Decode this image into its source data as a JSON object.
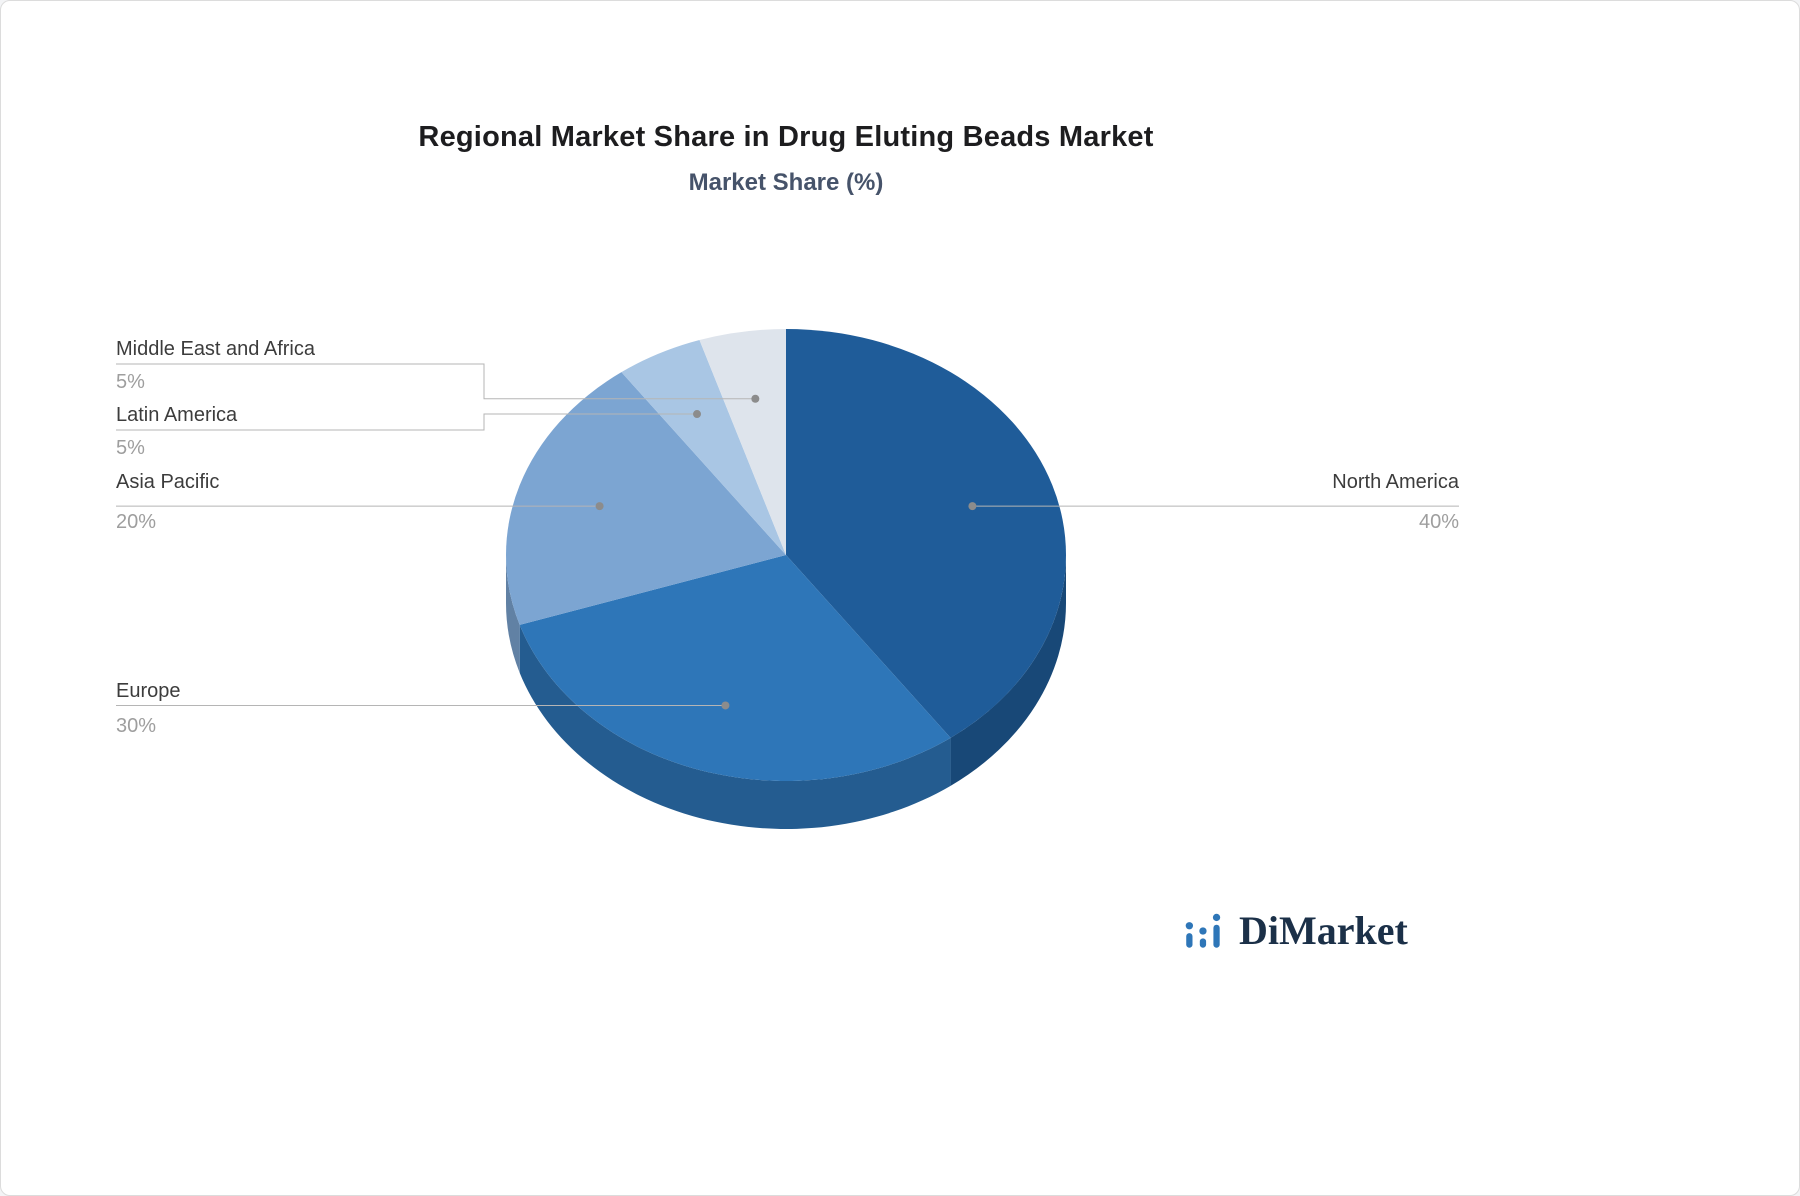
{
  "header": {
    "title": "Regional Market Share in Drug Eluting Beads Market",
    "subtitle": "Market Share (%)"
  },
  "chart_data": {
    "type": "pie",
    "title": "Regional Market Share in Drug Eluting Beads Market",
    "subtitle": "Market Share (%)",
    "unit": "%",
    "labels": [
      "North America",
      "Europe",
      "Asia Pacific",
      "Latin America",
      "Middle East and Africa"
    ],
    "values": [
      40,
      30,
      20,
      5,
      5
    ],
    "value_labels": [
      "40%",
      "30%",
      "20%",
      "5%",
      "5%"
    ],
    "colors": [
      "#1F5C99",
      "#2E76B8",
      "#7CA5D2",
      "#A9C6E4",
      "#DEE4EC"
    ],
    "start_angle_deg": -90,
    "direction": "clockwise",
    "effect": "3d",
    "legend_position": "none",
    "label_style": "callout",
    "total": 100
  },
  "branding": {
    "logo_text": "DiMarket",
    "logo_text_color": "#1b3048",
    "icon_color": "#2E76B8"
  }
}
